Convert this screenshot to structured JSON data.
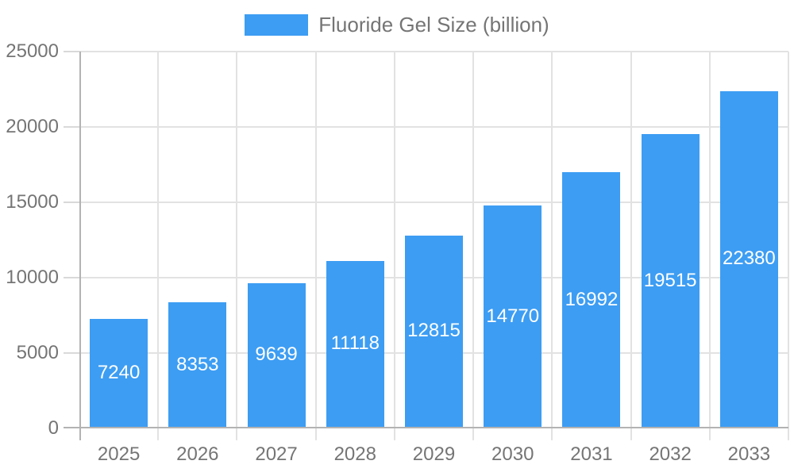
{
  "chart_data": {
    "type": "bar",
    "title": "",
    "legend": "Fluoride Gel Size (billion)",
    "legend_position": "top-center",
    "categories": [
      "2025",
      "2026",
      "2027",
      "2028",
      "2029",
      "2030",
      "2031",
      "2032",
      "2033"
    ],
    "series": [
      {
        "name": "Fluoride Gel Size (billion)",
        "values": [
          7240,
          8353,
          9639,
          11118,
          12815,
          14770,
          16992,
          19515,
          22380
        ]
      }
    ],
    "bar_value_labels": [
      "7240",
      "8353",
      "9639",
      "11118",
      "12815",
      "14770",
      "16992",
      "19515",
      "22380"
    ],
    "xlabel": "",
    "ylabel": "",
    "ylim": [
      0,
      25000
    ],
    "y_ticks": [
      0,
      5000,
      10000,
      15000,
      20000,
      25000
    ],
    "grid": true,
    "colors": {
      "bar": "#3D9DF3",
      "bar_label": "#ffffff",
      "axis_line": "#b3b3b3",
      "gridline": "#e2e2e2",
      "tick": "#d9d9d9",
      "axis_text": "#757575",
      "background": "#ffffff"
    }
  }
}
